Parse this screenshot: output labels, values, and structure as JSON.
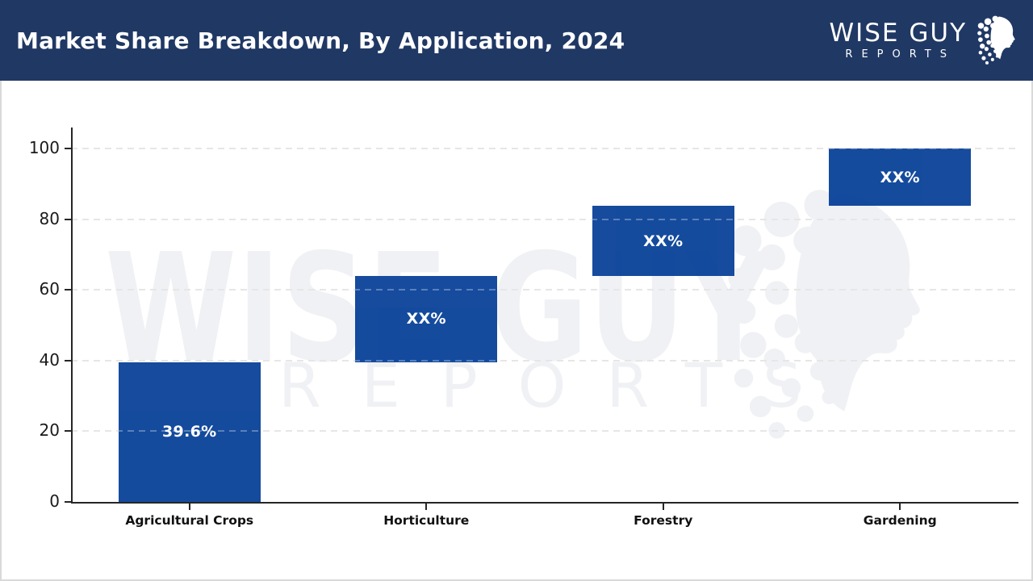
{
  "header": {
    "title": "Market Share Breakdown, By Application, 2024",
    "logo": {
      "brand": "WISE GUY",
      "sub": "REPORTS"
    }
  },
  "watermark": {
    "brand": "WISE GUY",
    "sub": "REPORTS"
  },
  "colors": {
    "header_bg": "#203864",
    "bar_fill": "#0c449a",
    "bar_label": "#ffffff",
    "axis": "#262626",
    "tick_label": "#1a1a1a",
    "gridline": "#dcdcdc",
    "watermark": "#f0f1f4",
    "page_frame": "#d9d9d9"
  },
  "chart_data": {
    "type": "bar",
    "subtype": "waterfall",
    "title": "Market Share Breakdown, By Application, 2024",
    "categories": [
      "Agricultural Crops",
      "Horticulture",
      "Forestry",
      "Gardening"
    ],
    "series": [
      {
        "name": "Market Share (%)",
        "segments": [
          {
            "category": "Agricultural Crops",
            "start": 0,
            "end": 39.6,
            "label": "39.6%"
          },
          {
            "category": "Horticulture",
            "start": 39.6,
            "end": 64.0,
            "label": "XX%"
          },
          {
            "category": "Forestry",
            "start": 64.0,
            "end": 83.7,
            "label": "XX%"
          },
          {
            "category": "Gardening",
            "start": 83.7,
            "end": 100.0,
            "label": "XX%"
          }
        ]
      }
    ],
    "xlabel": "",
    "ylabel": "",
    "ylim": [
      0,
      100
    ],
    "yticks": [
      0,
      20,
      40,
      60,
      80,
      100
    ],
    "grid": "dashed horizontal",
    "legend": "none"
  }
}
